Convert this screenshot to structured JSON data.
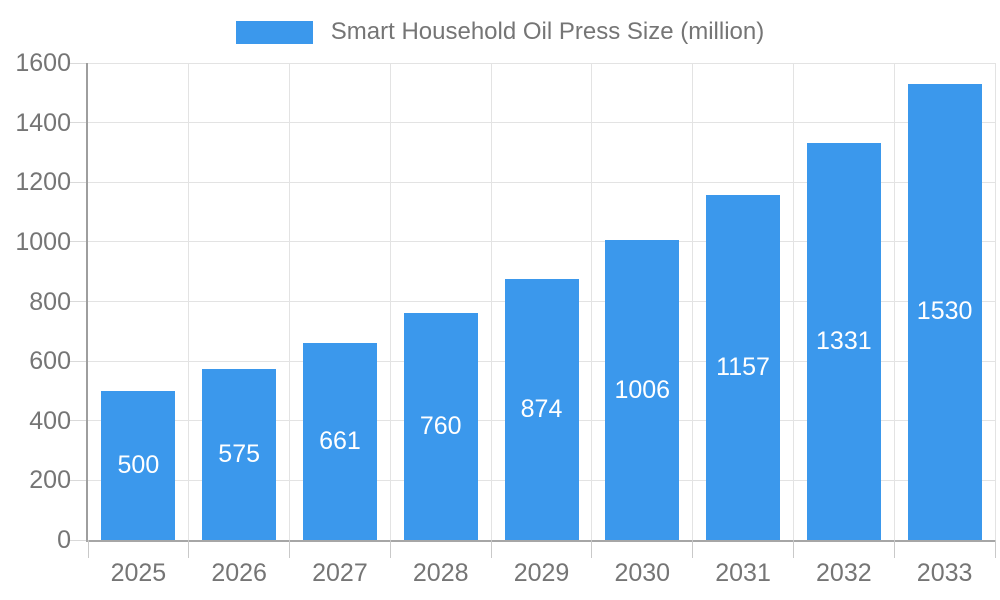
{
  "chart_data": {
    "type": "bar",
    "title": "Smart Household Oil Press Size (million)",
    "legend_position": "top",
    "categories": [
      "2025",
      "2026",
      "2027",
      "2028",
      "2029",
      "2030",
      "2031",
      "2032",
      "2033"
    ],
    "values": [
      500,
      575,
      661,
      760,
      874,
      1006,
      1157,
      1331,
      1530
    ],
    "series_name": "Smart Household Oil Press Size (million)",
    "xlabel": "",
    "ylabel": "",
    "ylim": [
      0,
      1600
    ],
    "ytick_interval": 200,
    "ytick_labels": [
      "0",
      "200",
      "400",
      "600",
      "800",
      "1000",
      "1200",
      "1400",
      "1600"
    ],
    "grid": true,
    "value_labels_inside_bars": true,
    "colors": {
      "bar": "#3b98ec",
      "bar_value_text": "#ffffff",
      "axis_text": "#757575",
      "axis_line": "#9e9e9e",
      "gridline": "#e3e3e3",
      "background": "#ffffff"
    }
  }
}
